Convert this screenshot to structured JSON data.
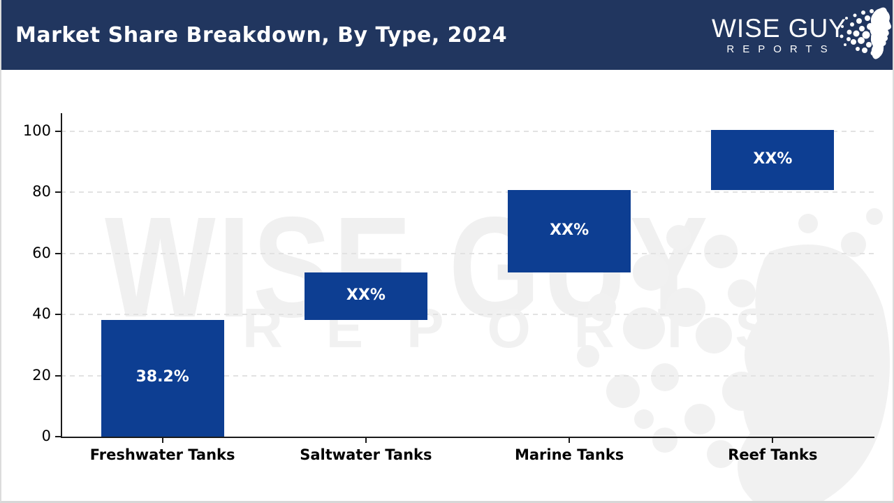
{
  "header": {
    "title": "Market Share Breakdown, By Type, 2024",
    "logo_line1": "WISE GUY",
    "logo_line2": "REPORTS"
  },
  "watermark": {
    "line1": "WISE GUY",
    "line2": "REPORTS"
  },
  "chart_data": {
    "type": "bar",
    "variant": "waterfall",
    "title": "Market Share Breakdown, By Type, 2024",
    "categories": [
      "Freshwater Tanks",
      "Saltwater Tanks",
      "Marine Tanks",
      "Reef Tanks"
    ],
    "segments": [
      {
        "category": "Freshwater Tanks",
        "start": 0,
        "end": 38.2,
        "label": "38.2%"
      },
      {
        "category": "Saltwater Tanks",
        "start": 38.2,
        "end": 53.8,
        "label": "XX%"
      },
      {
        "category": "Marine Tanks",
        "start": 53.8,
        "end": 80.7,
        "label": "XX%"
      },
      {
        "category": "Reef Tanks",
        "start": 80.7,
        "end": 100.4,
        "label": "XX%"
      }
    ],
    "yticks": [
      0,
      20,
      40,
      60,
      80,
      100
    ],
    "ylim": [
      0,
      105
    ],
    "xlabel": "",
    "ylabel": "",
    "grid": "horizontal-dashed",
    "legend": "none",
    "bar_color": "#0d3e92",
    "bar_label_color": "#ffffff",
    "header_color": "#21365f"
  }
}
